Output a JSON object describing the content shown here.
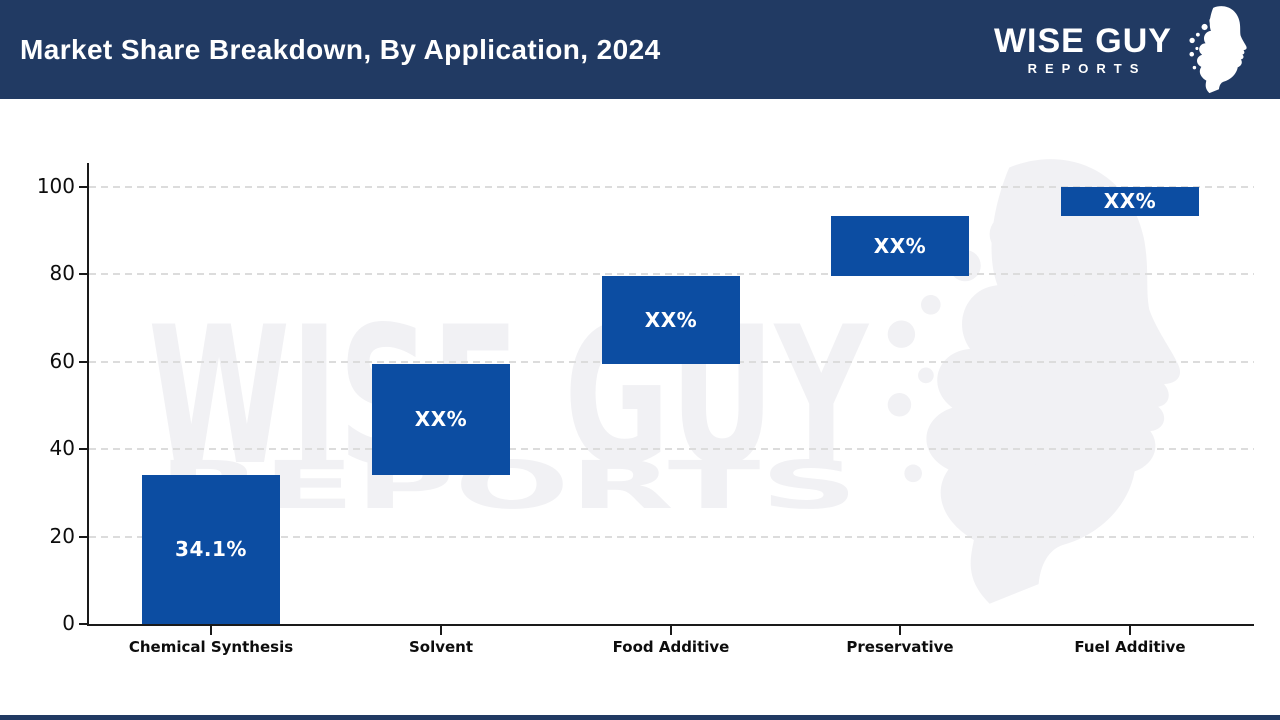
{
  "header": {
    "title": "Market Share Breakdown, By Application, 2024",
    "logo_line1": "WISE GUY",
    "logo_line2": "REPORTS"
  },
  "watermark": {
    "line1": "WISE GUY",
    "line2": "REPORTS"
  },
  "colors": {
    "header_bg": "#213A63",
    "footer_bg": "#213A63",
    "bar": "#0C4DA2",
    "grid": "#DCDCDC",
    "axis": "#1A1A1A",
    "bar_label": "#FFFFFF",
    "watermark": "#F1F1F4"
  },
  "chart_data": {
    "type": "bar",
    "variant": "waterfall",
    "title": "Market Share Breakdown, By Application, 2024",
    "categories": [
      "Chemical Synthesis",
      "Solvent",
      "Food Additive",
      "Preservative",
      "Fuel Additive"
    ],
    "segments": [
      {
        "category": "Chemical Synthesis",
        "start": 0,
        "end": 34.1,
        "size": 34.1,
        "label": "34.1%"
      },
      {
        "category": "Solvent",
        "start": 34.1,
        "end": 59.6,
        "size": 25.5,
        "label": "XX%"
      },
      {
        "category": "Food Additive",
        "start": 59.6,
        "end": 79.6,
        "size": 20.0,
        "label": "XX%"
      },
      {
        "category": "Preservative",
        "start": 79.6,
        "end": 93.4,
        "size": 13.8,
        "label": "XX%"
      },
      {
        "category": "Fuel Additive",
        "start": 93.4,
        "end": 100.0,
        "size": 6.6,
        "label": "XX%"
      }
    ],
    "yticks": [
      0,
      20,
      40,
      60,
      80,
      100
    ],
    "ylim": [
      0,
      100
    ],
    "xlabel": "",
    "ylabel": "",
    "grid": "horizontal-dashed",
    "legend": "none"
  }
}
